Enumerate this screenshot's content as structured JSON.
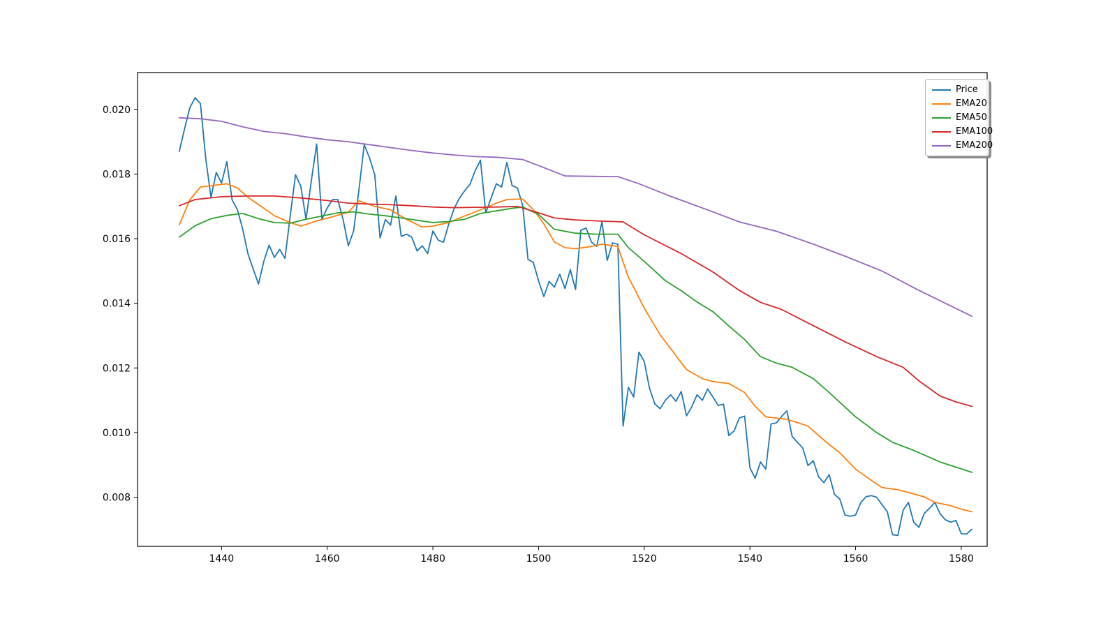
{
  "chart_data": {
    "type": "line",
    "title": "",
    "xlabel": "",
    "ylabel": "",
    "grid": false,
    "legend_position": "upper right",
    "xlim": [
      1424.1,
      1584.9
    ],
    "ylim": [
      0.00648,
      0.02114
    ],
    "xtick_values": [
      1440,
      1460,
      1480,
      1500,
      1520,
      1540,
      1560,
      1580
    ],
    "xtick_labels": [
      "1440",
      "1460",
      "1480",
      "1500",
      "1520",
      "1540",
      "1560",
      "1580"
    ],
    "ytick_values": [
      0.008,
      0.01,
      0.012,
      0.014,
      0.016,
      0.018,
      0.02
    ],
    "ytick_labels": [
      "0.008",
      "0.010",
      "0.012",
      "0.014",
      "0.016",
      "0.018",
      "0.020"
    ],
    "axis_color": "#000000",
    "tick_font_px": 14,
    "series": [
      {
        "name": "Price",
        "color": "#1f77b4",
        "x_start": 1432,
        "x_step": 1,
        "values": [
          0.0187,
          0.0194,
          0.02005,
          0.02036,
          0.02018,
          0.0185,
          0.01728,
          0.01805,
          0.01772,
          0.01838,
          0.0172,
          0.0169,
          0.0163,
          0.01553,
          0.01506,
          0.0146,
          0.0153,
          0.0158,
          0.01542,
          0.01567,
          0.01539,
          0.0167,
          0.01798,
          0.01762,
          0.0166,
          0.0178,
          0.01893,
          0.0166,
          0.01695,
          0.01721,
          0.01721,
          0.0166,
          0.01578,
          0.01624,
          0.0175,
          0.01891,
          0.0185,
          0.01798,
          0.01602,
          0.01659,
          0.01642,
          0.01732,
          0.01607,
          0.01614,
          0.01605,
          0.01562,
          0.01578,
          0.01554,
          0.01624,
          0.01596,
          0.01589,
          0.01645,
          0.01692,
          0.01725,
          0.01748,
          0.01768,
          0.0181,
          0.01843,
          0.0168,
          0.01725,
          0.0177,
          0.0176,
          0.01836,
          0.01764,
          0.01757,
          0.01703,
          0.01536,
          0.01527,
          0.0147,
          0.01421,
          0.01468,
          0.0145,
          0.0149,
          0.01446,
          0.01504,
          0.01443,
          0.01626,
          0.01633,
          0.0159,
          0.01576,
          0.01652,
          0.01533,
          0.01587,
          0.01583,
          0.0102,
          0.0114,
          0.0111,
          0.01249,
          0.0122,
          0.01137,
          0.01089,
          0.01074,
          0.011,
          0.01117,
          0.01097,
          0.01127,
          0.01052,
          0.0108,
          0.01117,
          0.011,
          0.01135,
          0.0111,
          0.01084,
          0.01088,
          0.00991,
          0.01005,
          0.01045,
          0.01051,
          0.00891,
          0.00859,
          0.00909,
          0.00887,
          0.01027,
          0.0103,
          0.0105,
          0.01067,
          0.00988,
          0.0097,
          0.00952,
          0.00898,
          0.00913,
          0.00863,
          0.00845,
          0.0087,
          0.00809,
          0.00795,
          0.00745,
          0.00741,
          0.00745,
          0.00784,
          0.00802,
          0.00805,
          0.008,
          0.00777,
          0.00755,
          0.00684,
          0.00682,
          0.0076,
          0.00784,
          0.00723,
          0.00707,
          0.0075,
          0.00766,
          0.00784,
          0.00749,
          0.0073,
          0.00723,
          0.00728,
          0.00687,
          0.00686,
          0.00701
        ]
      },
      {
        "name": "EMA20",
        "color": "#ff7f0e",
        "x": [
          1432,
          1434,
          1436,
          1438,
          1441,
          1443,
          1445,
          1448,
          1450,
          1453,
          1455,
          1458,
          1461,
          1464,
          1466,
          1469,
          1472,
          1475,
          1478,
          1480,
          1483,
          1486,
          1489,
          1492,
          1494,
          1497,
          1499,
          1501,
          1503,
          1505,
          1507,
          1510,
          1512,
          1515,
          1517,
          1518,
          1520,
          1523,
          1526,
          1528,
          1531,
          1533,
          1536,
          1539,
          1541,
          1543,
          1545,
          1547,
          1549,
          1551,
          1553,
          1555,
          1557,
          1560,
          1563,
          1565,
          1568,
          1570,
          1573,
          1575,
          1578,
          1580,
          1582
        ],
        "values": [
          0.01643,
          0.0172,
          0.0176,
          0.01764,
          0.0177,
          0.01757,
          0.01728,
          0.01694,
          0.01671,
          0.0165,
          0.01639,
          0.01655,
          0.01668,
          0.01682,
          0.01717,
          0.017,
          0.01689,
          0.0166,
          0.01636,
          0.01639,
          0.0165,
          0.0167,
          0.01689,
          0.0171,
          0.01721,
          0.01723,
          0.0169,
          0.01646,
          0.0159,
          0.01572,
          0.01569,
          0.01576,
          0.01583,
          0.01576,
          0.0148,
          0.0145,
          0.01385,
          0.01303,
          0.01238,
          0.01195,
          0.01167,
          0.01158,
          0.01152,
          0.01124,
          0.01081,
          0.01049,
          0.01045,
          0.01041,
          0.01031,
          0.0102,
          0.00991,
          0.00963,
          0.00938,
          0.00887,
          0.00852,
          0.0083,
          0.00823,
          0.00815,
          0.00801,
          0.00784,
          0.00774,
          0.00763,
          0.00755
        ]
      },
      {
        "name": "EMA50",
        "color": "#2ca02c",
        "x": [
          1432,
          1435,
          1438,
          1441,
          1444,
          1447,
          1450,
          1453,
          1456,
          1459,
          1462,
          1465,
          1468,
          1471,
          1474,
          1477,
          1480,
          1483,
          1486,
          1489,
          1492,
          1495,
          1497,
          1500,
          1503,
          1507,
          1511,
          1515,
          1517,
          1520,
          1524,
          1527,
          1530,
          1533,
          1536,
          1539,
          1542,
          1545,
          1548,
          1552,
          1555,
          1560,
          1564,
          1567,
          1571,
          1576,
          1582
        ],
        "values": [
          0.01605,
          0.0164,
          0.01662,
          0.01672,
          0.01678,
          0.01662,
          0.0165,
          0.01648,
          0.0166,
          0.0167,
          0.0168,
          0.01683,
          0.01676,
          0.01671,
          0.01664,
          0.01657,
          0.0165,
          0.01653,
          0.0166,
          0.01678,
          0.01686,
          0.01694,
          0.01698,
          0.01675,
          0.01629,
          0.01617,
          0.01614,
          0.01614,
          0.01572,
          0.0153,
          0.0147,
          0.01439,
          0.01404,
          0.01374,
          0.0133,
          0.01288,
          0.01235,
          0.01215,
          0.01202,
          0.01167,
          0.01124,
          0.01049,
          0.01,
          0.0097,
          0.00945,
          0.00909,
          0.00877
        ]
      },
      {
        "name": "EMA100",
        "color": "#d62728",
        "x": [
          1432,
          1435,
          1440,
          1445,
          1450,
          1455,
          1460,
          1464,
          1468,
          1472,
          1476,
          1480,
          1484,
          1488,
          1492,
          1496,
          1500,
          1503,
          1507,
          1511,
          1516,
          1520,
          1527,
          1533,
          1538,
          1542,
          1546,
          1552,
          1558,
          1564,
          1569,
          1572,
          1576,
          1579,
          1582
        ],
        "values": [
          0.01702,
          0.01721,
          0.0173,
          0.01732,
          0.01732,
          0.01726,
          0.01718,
          0.0171,
          0.01707,
          0.01705,
          0.01702,
          0.01698,
          0.01696,
          0.01697,
          0.01698,
          0.017,
          0.0168,
          0.01664,
          0.01658,
          0.01655,
          0.01652,
          0.01612,
          0.01554,
          0.01497,
          0.0144,
          0.01403,
          0.01381,
          0.01331,
          0.01281,
          0.01235,
          0.01202,
          0.0116,
          0.01113,
          0.01095,
          0.01081
        ]
      },
      {
        "name": "EMA200",
        "color": "#9467bd",
        "x": [
          1432,
          1436,
          1440,
          1444,
          1448,
          1452,
          1456,
          1460,
          1464,
          1468,
          1472,
          1476,
          1480,
          1484,
          1488,
          1492,
          1497,
          1501,
          1505,
          1510,
          1515,
          1519,
          1525,
          1532,
          1538,
          1545,
          1552,
          1558,
          1565,
          1572,
          1582
        ],
        "values": [
          0.01974,
          0.01971,
          0.01963,
          0.01946,
          0.01932,
          0.01925,
          0.01915,
          0.01906,
          0.019,
          0.01891,
          0.01882,
          0.01873,
          0.01865,
          0.01859,
          0.01854,
          0.01852,
          0.01845,
          0.0182,
          0.01794,
          0.01793,
          0.01792,
          0.0177,
          0.01731,
          0.01689,
          0.01652,
          0.01623,
          0.01583,
          0.01546,
          0.015,
          0.0144,
          0.0136
        ]
      }
    ]
  }
}
